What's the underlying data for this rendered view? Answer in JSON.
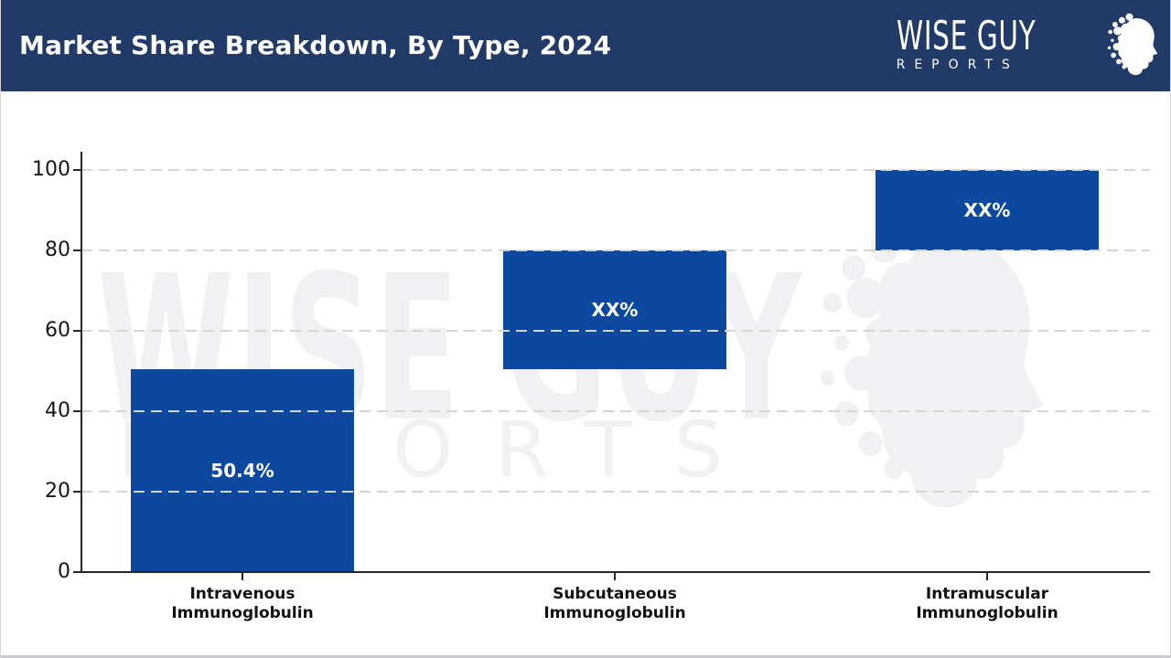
{
  "header": {
    "title": "Market Share Breakdown, By Type, 2024",
    "background_color": "#223a68",
    "logo": {
      "line1": "WISE GUY",
      "line2": "REPORTS",
      "head_icon": "dotted-head-profile"
    }
  },
  "watermark": {
    "line1": "WISE GUY",
    "line2": "REPORTS",
    "head_icon": "dotted-head-profile"
  },
  "chart_data": {
    "type": "bar",
    "subtype": "waterfall-floating-segments",
    "title": "Market Share Breakdown, By Type, 2024",
    "categories": [
      [
        "Intravenous",
        "Immunoglobulin"
      ],
      [
        "Subcutaneous",
        "Immunoglobulin"
      ],
      [
        "Intramuscular",
        "Immunoglobulin"
      ]
    ],
    "series": [
      {
        "name": "Market Share",
        "segments": [
          {
            "start": 0,
            "end": 50.4,
            "label": "50.4%"
          },
          {
            "start": 50.4,
            "end": 80,
            "label": "XX%"
          },
          {
            "start": 80,
            "end": 100,
            "label": "XX%"
          }
        ]
      }
    ],
    "xlabel": "",
    "ylabel": "",
    "ylim": [
      0,
      100
    ],
    "yticks": [
      0,
      20,
      40,
      60,
      80,
      100
    ],
    "grid": true,
    "grid_style": "dashed",
    "grid_color": "#d5d5d5",
    "bar_color": "#0b489f",
    "bar_label_color": "#ffffff",
    "axis_color": "#262626",
    "legend": "none"
  }
}
